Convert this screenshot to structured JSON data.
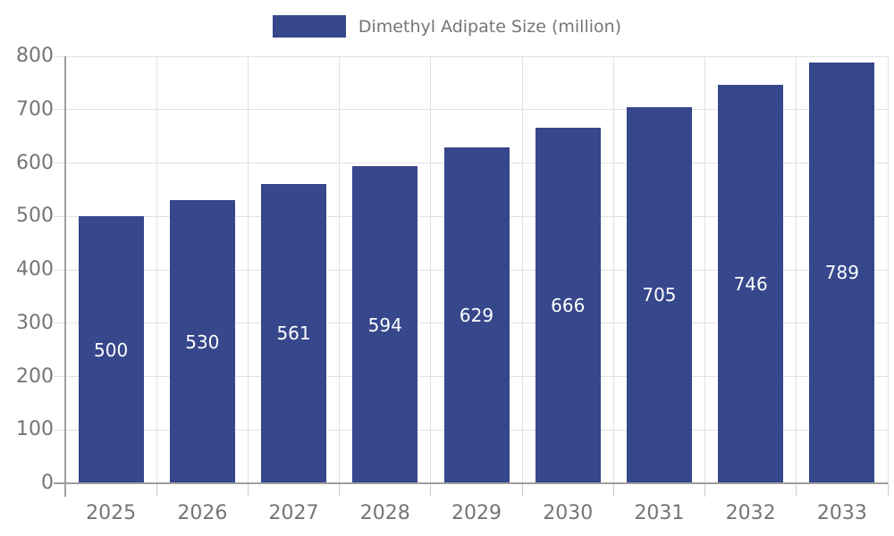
{
  "chart_data": {
    "type": "bar",
    "title": "Dimethyl Adipate Size (million)",
    "series_name": "Dimethyl Adipate Size (million)",
    "categories": [
      "2025",
      "2026",
      "2027",
      "2028",
      "2029",
      "2030",
      "2031",
      "2032",
      "2033"
    ],
    "values": [
      500,
      530,
      561,
      594,
      629,
      666,
      705,
      746,
      789
    ],
    "xlabel": "",
    "ylabel": "",
    "ylim": [
      0,
      800
    ],
    "ytick_step": 100,
    "yticks": [
      0,
      100,
      200,
      300,
      400,
      500,
      600,
      700,
      800
    ],
    "grid": true,
    "legend_position": "top-center",
    "value_labels_position": "inside-center",
    "colors": {
      "bar": "#36478b",
      "value_label": "#ffffff",
      "axis_text": "#757575",
      "gridline": "#e2e2e2",
      "axis_line": "#9e9e9e",
      "tick": "#cccccc",
      "background": "#ffffff"
    }
  }
}
